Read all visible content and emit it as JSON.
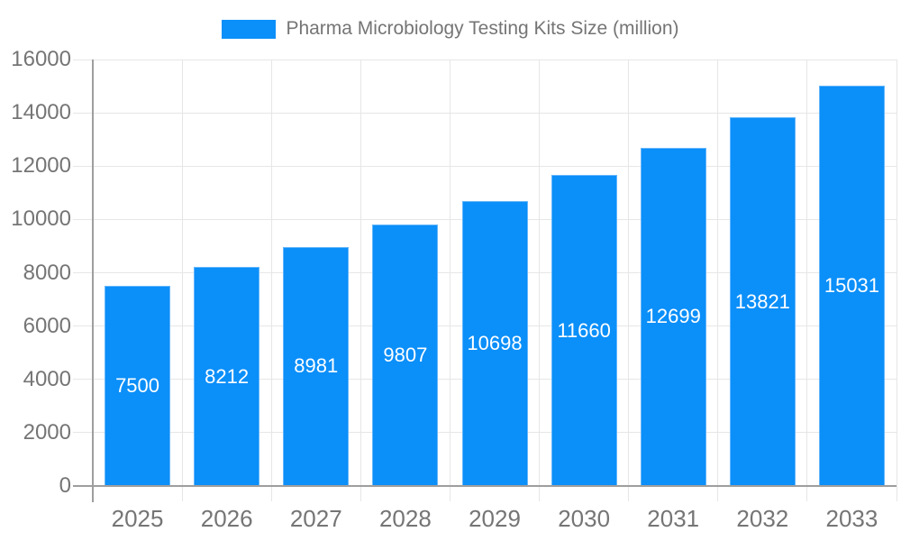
{
  "chart_data": {
    "type": "bar",
    "title": "Pharma Microbiology Testing Kits Size (million)",
    "legend": {
      "label": "Pharma Microbiology Testing Kits Size (million)",
      "position": "top"
    },
    "categories": [
      "2025",
      "2026",
      "2027",
      "2028",
      "2029",
      "2030",
      "2031",
      "2032",
      "2033"
    ],
    "values": [
      7500,
      8212,
      8981,
      9807,
      10698,
      11660,
      12699,
      13821,
      15031
    ],
    "xlabel": "",
    "ylabel": "",
    "ylim": [
      0,
      16000
    ],
    "y_ticks": [
      0,
      2000,
      4000,
      6000,
      8000,
      10000,
      12000,
      14000,
      16000
    ],
    "grid": true,
    "bar_labels_inside": true,
    "colors": {
      "bar_fill": "#0b8ff9",
      "bar_edge": "#64b6fa",
      "bar_label_text": "#ffffff",
      "axis_text": "#757575",
      "gridline": "#e6e6e6",
      "axis_line": "#9e9e9e",
      "background": "#ffffff"
    }
  }
}
